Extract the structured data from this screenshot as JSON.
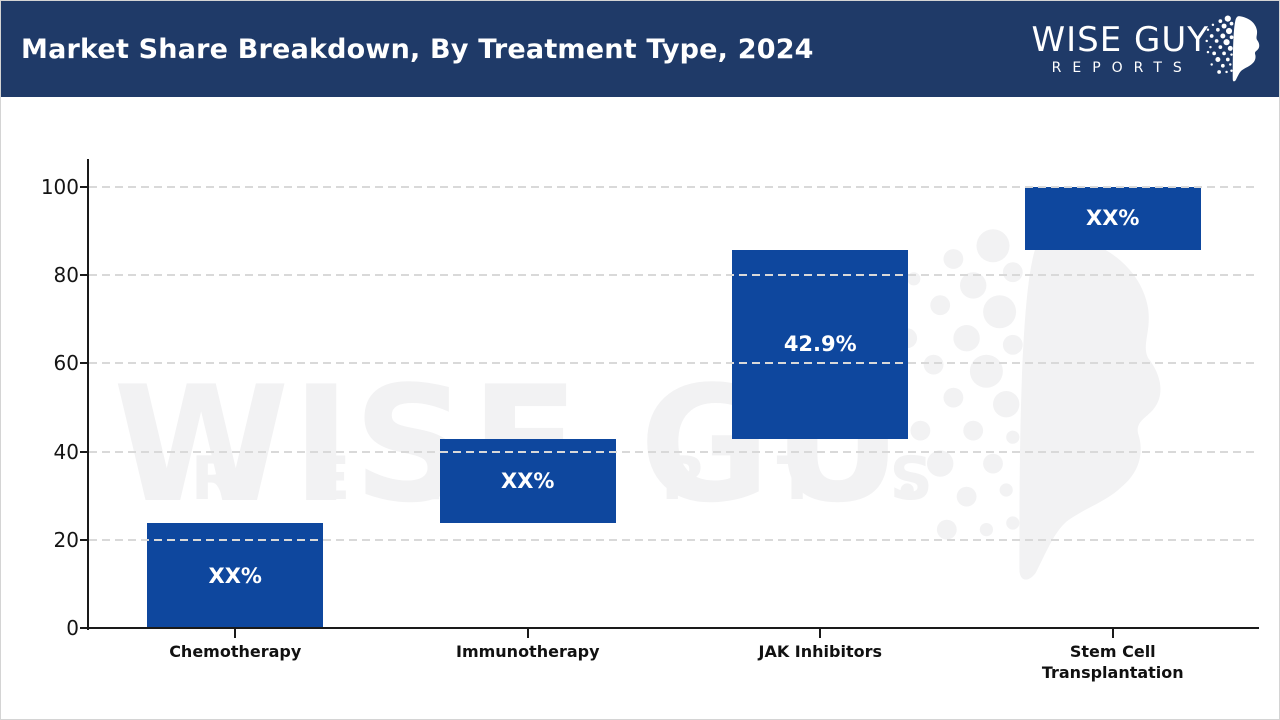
{
  "header": {
    "title": "Market Share Breakdown, By Treatment Type, 2024",
    "logo": {
      "wordmark": "WISE GUY",
      "subtext": "REPORTS"
    }
  },
  "watermark": {
    "wordmark": "WISE GU",
    "subtext": "REPORTS"
  },
  "colors": {
    "header_bg": "#1f3a68",
    "bar": "#0e479e",
    "grid": "#d9d9d9",
    "axis": "#1a1a1a",
    "watermark": "#f2f2f3",
    "title_text": "#ffffff"
  },
  "chart_data": {
    "type": "bar",
    "subtype": "waterfall",
    "title": "Market Share Breakdown, By Treatment Type, 2024",
    "categories": [
      "Chemotherapy",
      "Immunotherapy",
      "JAK Inhibitors",
      "Stem Cell Transplantation"
    ],
    "tick_labels": [
      "Chemotherapy",
      "Immunotherapy",
      "JAK Inhibitors",
      "Stem Cell\nTransplantation"
    ],
    "segments": [
      {
        "category": "Chemotherapy",
        "start": 0,
        "end": 23.8,
        "value_label": "XX%"
      },
      {
        "category": "Immunotherapy",
        "start": 23.8,
        "end": 42.9,
        "value_label": "XX%"
      },
      {
        "category": "JAK Inhibitors",
        "start": 42.9,
        "end": 85.8,
        "value": 42.9,
        "value_label": "42.9%"
      },
      {
        "category": "Stem Cell Transplantation",
        "start": 85.8,
        "end": 100,
        "value_label": "XX%"
      }
    ],
    "ylim": [
      0,
      100
    ],
    "yticks": [
      0,
      20,
      40,
      60,
      80,
      100
    ],
    "grid": "horizontal-dashed",
    "legend": "none",
    "xlabel": "",
    "ylabel": ""
  }
}
